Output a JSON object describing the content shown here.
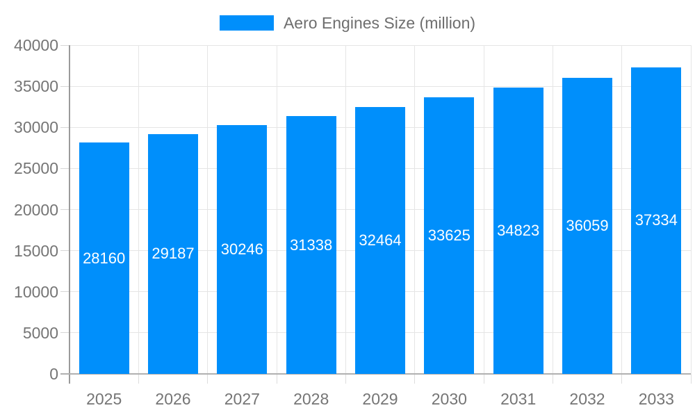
{
  "legend": {
    "label": "Aero Engines Size (million)"
  },
  "chart_data": {
    "type": "bar",
    "title": "Aero Engines Size (million)",
    "categories": [
      "2025",
      "2026",
      "2027",
      "2028",
      "2029",
      "2030",
      "2031",
      "2032",
      "2033"
    ],
    "series": [
      {
        "name": "Aero Engines Size (million)",
        "values": [
          28160,
          29187,
          30246,
          31338,
          32464,
          33625,
          34823,
          36059,
          37334
        ]
      }
    ],
    "value_labels": [
      "28160",
      "29187",
      "30246",
      "31338",
      "32464",
      "33625",
      "34823",
      "36059",
      "37334"
    ],
    "xlabel": "",
    "ylabel": "",
    "ylim": [
      0,
      40000
    ],
    "ytick_step": 5000,
    "ytick_labels": [
      "0",
      "5000",
      "10000",
      "15000",
      "20000",
      "25000",
      "30000",
      "35000",
      "40000"
    ],
    "grid": true,
    "legend_position": "top-center",
    "colors": {
      "bar": "#008FFB",
      "bar_value_label": "#ffffff",
      "axis_text": "#757575",
      "legend_text": "#6e6e6e",
      "gridline": "#e5e5e5",
      "y_axis_line": "#9a9a9a",
      "x_axis_line": "#b0b0b0",
      "background": "#ffffff"
    }
  }
}
